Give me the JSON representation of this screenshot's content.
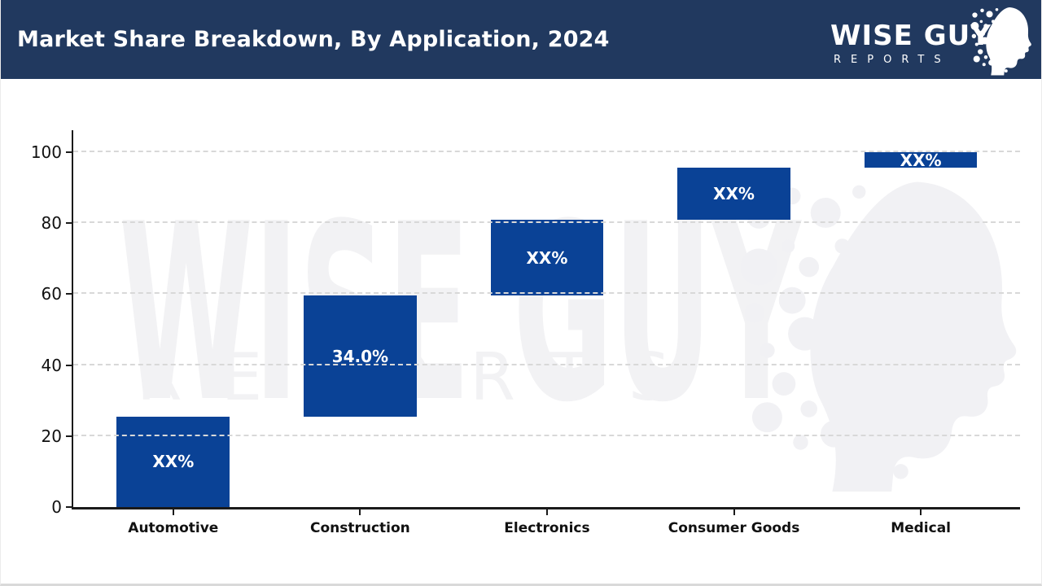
{
  "header": {
    "title": "Market Share Breakdown, By Application, 2024",
    "logo": {
      "line1": "WISE GUY",
      "line2": "REPORTS"
    }
  },
  "watermark": {
    "line1": "WISE GUY",
    "line2": "REPORTS"
  },
  "colors": {
    "header_bg": "#21395f",
    "bar": "#0a4296",
    "grid": "#d8d8d8",
    "axis": "#1a1a1a",
    "watermark": "#f2f2f4"
  },
  "chart_data": {
    "type": "bar",
    "subtype": "waterfall",
    "title": "Market Share Breakdown, By Application, 2024",
    "xlabel": "",
    "ylabel": "",
    "legend": "none",
    "grid": "horizontal-dashed",
    "bar_color": "#0a4296",
    "yticks": [
      0,
      20,
      40,
      60,
      80,
      100
    ],
    "ylim": [
      0,
      106
    ],
    "categories": [
      "Automotive",
      "Construction",
      "Electronics",
      "Consumer Goods",
      "Medical"
    ],
    "segments": [
      {
        "category": "Automotive",
        "start": 0,
        "end": 25.5,
        "label": "XX%"
      },
      {
        "category": "Construction",
        "start": 25.5,
        "end": 59.5,
        "label": "34.0%"
      },
      {
        "category": "Electronics",
        "start": 59.5,
        "end": 81,
        "label": "XX%"
      },
      {
        "category": "Consumer Goods",
        "start": 81,
        "end": 95.5,
        "label": "XX%"
      },
      {
        "category": "Medical",
        "start": 95.5,
        "end": 100,
        "label": "XX%"
      }
    ]
  }
}
